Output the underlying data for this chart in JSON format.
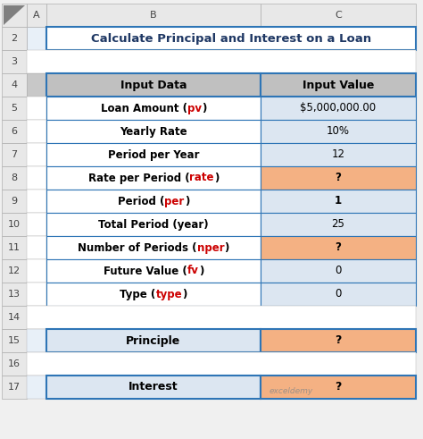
{
  "title": "Calculate Principal and Interest on a Loan",
  "col_headers": [
    "Input Data",
    "Input Value"
  ],
  "rows": [
    {
      "label": "Loan Amount (",
      "label_red": "pv",
      "label_end": ")",
      "value": "$5,000,000.00",
      "value_bold": false,
      "value_bg": "#dce6f1",
      "label_bg": "#ffffff"
    },
    {
      "label": "Yearly Rate",
      "label_red": "",
      "label_end": "",
      "value": "10%",
      "value_bold": false,
      "value_bg": "#dce6f1",
      "label_bg": "#ffffff"
    },
    {
      "label": "Period per Year",
      "label_red": "",
      "label_end": "",
      "value": "12",
      "value_bold": false,
      "value_bg": "#dce6f1",
      "label_bg": "#ffffff"
    },
    {
      "label": "Rate per Period (",
      "label_red": "rate",
      "label_end": ")",
      "value": "?",
      "value_bold": true,
      "value_bg": "#f4b183",
      "label_bg": "#ffffff"
    },
    {
      "label": "Period (",
      "label_red": "per",
      "label_end": ")",
      "value": "1",
      "value_bold": true,
      "value_bg": "#dce6f1",
      "label_bg": "#ffffff"
    },
    {
      "label": "Total Period (year)",
      "label_red": "",
      "label_end": "",
      "value": "25",
      "value_bold": false,
      "value_bg": "#dce6f1",
      "label_bg": "#ffffff"
    },
    {
      "label": "Number of Periods (",
      "label_red": "nper",
      "label_end": ")",
      "value": "?",
      "value_bold": true,
      "value_bg": "#f4b183",
      "label_bg": "#ffffff"
    },
    {
      "label": "Future Value (",
      "label_red": "fv",
      "label_end": ")",
      "value": "0",
      "value_bold": false,
      "value_bg": "#dce6f1",
      "label_bg": "#ffffff"
    },
    {
      "label": "Type (",
      "label_red": "type",
      "label_end": ")",
      "value": "0",
      "value_bold": false,
      "value_bg": "#dce6f1",
      "label_bg": "#ffffff"
    }
  ],
  "summary_rows": [
    {
      "label": "Principle",
      "value": "?",
      "label_bg": "#dce6f1",
      "value_bg": "#f4b183"
    },
    {
      "label": "Interest",
      "value": "?",
      "label_bg": "#dce6f1",
      "value_bg": "#f4b183"
    }
  ],
  "col_header_bg": "#c0c0c0",
  "data_header_bg": "#bdd7ee",
  "border_color": "#2e75b6",
  "grid_color": "#a0a0a0",
  "title_color": "#1f3864",
  "red_color": "#cc0000",
  "black_color": "#000000",
  "row_num_bg": "#e8e8e8",
  "row_num_border": "#b0b0b0",
  "col_a_small_bg": "#e8e8e8",
  "figsize": [
    4.74,
    4.91
  ],
  "dpi": 100,
  "font_size_label": 8.5,
  "font_size_header": 9.0,
  "font_size_title": 9.5
}
